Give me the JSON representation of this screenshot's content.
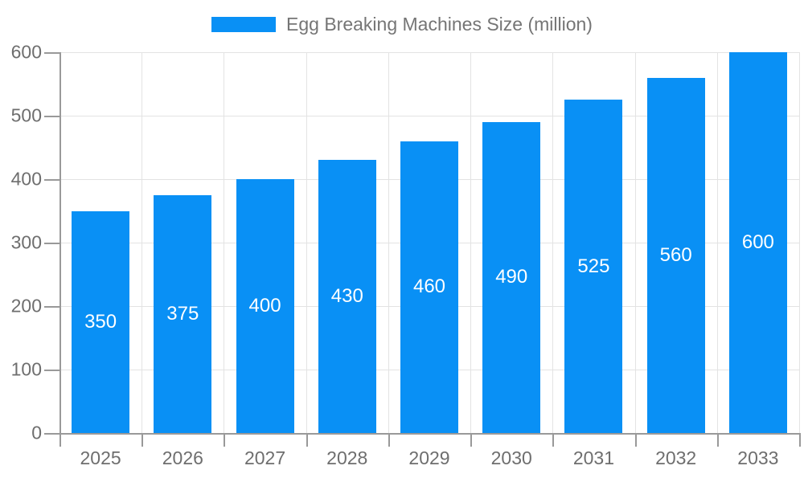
{
  "legend": {
    "label": "Egg Breaking Machines Size (million)"
  },
  "chart_data": {
    "type": "bar",
    "title": "Egg Breaking Machines Size (million)",
    "categories": [
      "2025",
      "2026",
      "2027",
      "2028",
      "2029",
      "2030",
      "2031",
      "2032",
      "2033"
    ],
    "values": [
      350,
      375,
      400,
      430,
      460,
      490,
      525,
      560,
      600
    ],
    "xlabel": "",
    "ylabel": "",
    "ylim": [
      0,
      600
    ],
    "yticks": [
      0,
      100,
      200,
      300,
      400,
      500,
      600
    ],
    "grid": true,
    "legend_position": "top",
    "bar_labels_inside": true
  },
  "colors": {
    "bar": "#0990f5",
    "grid": "#e3e3e3",
    "axis": "#999999",
    "axis_text": "#6e6e6e",
    "legend_text": "#757575",
    "bar_label_text": "#ffffff"
  }
}
